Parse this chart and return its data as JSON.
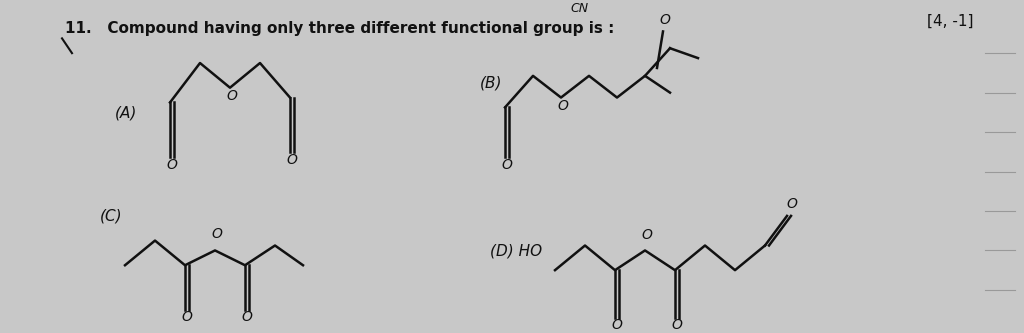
{
  "background_color": "#c8c8c8",
  "title_text": "11.   Compound having only three different functional group is :",
  "score_text": "[4, -1]",
  "cn_text": "CN",
  "option_a_label": "(A)",
  "option_b_label": "(B)",
  "option_c_label": "(C)",
  "option_d_label": "(D) HO",
  "text_color": "#111111",
  "fig_width": 10.24,
  "fig_height": 3.33,
  "lw": 1.8
}
